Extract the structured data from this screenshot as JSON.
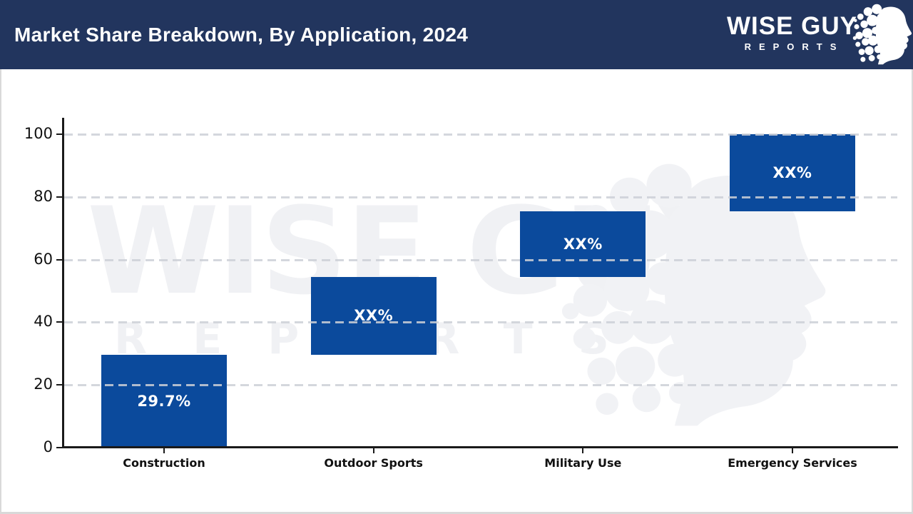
{
  "header": {
    "title": "Market Share Breakdown, By Application, 2024",
    "bg_color": "#22355e",
    "brand": {
      "line1": "WISE GUY",
      "line2": "REPORTS"
    }
  },
  "watermark": {
    "line1": "WISE GUY",
    "line2": "REPORTS"
  },
  "chart_data": {
    "type": "bar",
    "variant": "waterfall",
    "title": "Market Share Breakdown, By Application, 2024",
    "categories": [
      "Construction",
      "Outdoor Sports",
      "Military Use",
      "Emergency Services"
    ],
    "segments": [
      {
        "category": "Construction",
        "start": 0,
        "end": 29.7,
        "label": "29.7%"
      },
      {
        "category": "Outdoor Sports",
        "start": 29.7,
        "end": 54.5,
        "label": "XX%"
      },
      {
        "category": "Military Use",
        "start": 54.5,
        "end": 75.5,
        "label": "XX%"
      },
      {
        "category": "Emergency Services",
        "start": 75.5,
        "end": 100,
        "label": "XX%"
      }
    ],
    "values": [
      29.7,
      24.8,
      21.0,
      24.5
    ],
    "yticks": [
      0,
      20,
      40,
      60,
      80,
      100
    ],
    "ylim": [
      0,
      105
    ],
    "xlabel": "",
    "ylabel": "",
    "grid": "horizontal-dashed",
    "legend": "none",
    "bar_color": "#0b4a9c",
    "bar_label_color": "#ffffff",
    "gridline_color": "#d9d9d9",
    "axis_color": "#1a1a1a"
  }
}
